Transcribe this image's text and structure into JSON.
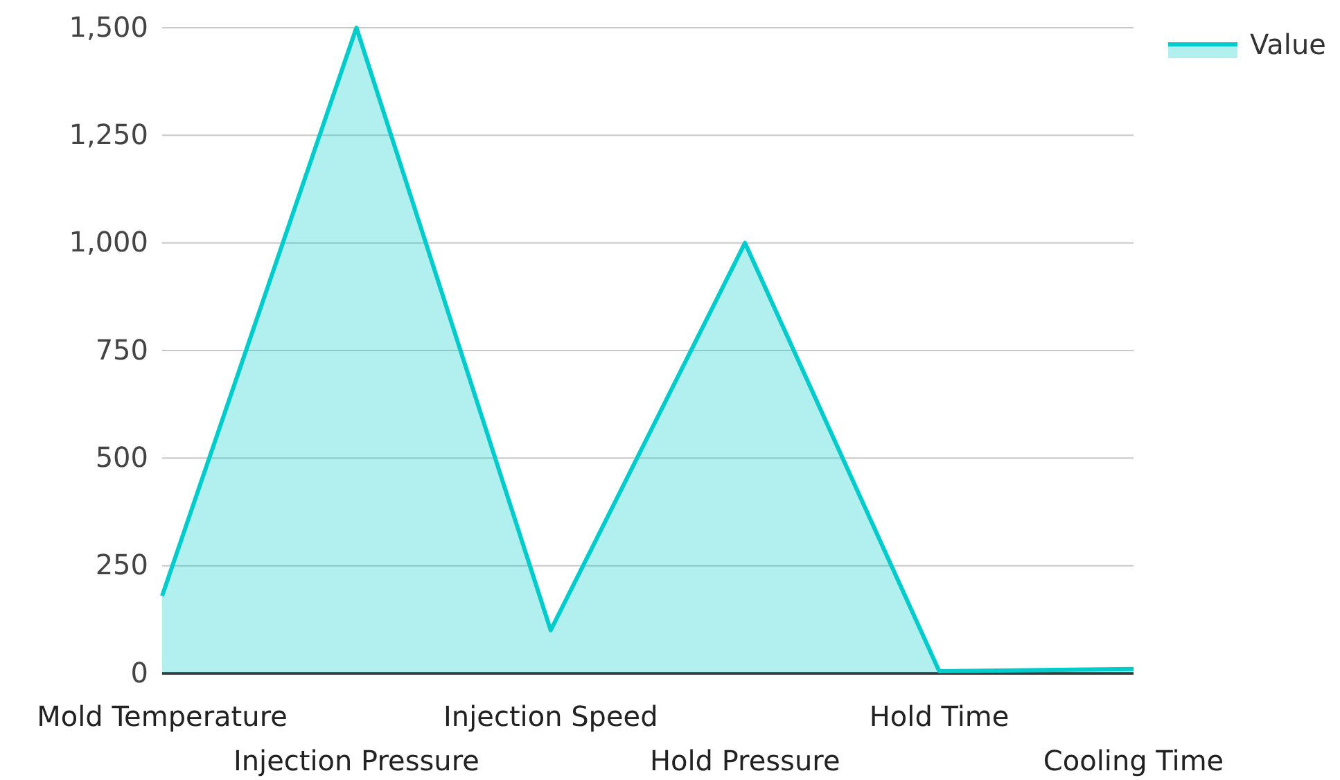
{
  "chart_data": {
    "type": "area",
    "categories": [
      "Mold Temperature",
      "Injection Pressure",
      "Injection Speed",
      "Hold Pressure",
      "Hold Time",
      "Cooling Time"
    ],
    "series": [
      {
        "name": "Value",
        "color": "#00cccc",
        "values": [
          180,
          1500,
          100,
          1000,
          5,
          10
        ]
      }
    ],
    "ylim": [
      0,
      1500
    ],
    "yticks": [
      0,
      {
        "value": 250,
        "label": "250"
      },
      {
        "value": 500,
        "label": "500"
      },
      {
        "value": 750,
        "label": "750"
      },
      {
        "value": 1000,
        "label": "1,000"
      },
      {
        "value": 1250,
        "label": "1,250"
      },
      {
        "value": 1500,
        "label": "1,500"
      }
    ],
    "grid": "y",
    "legend": "top right"
  }
}
